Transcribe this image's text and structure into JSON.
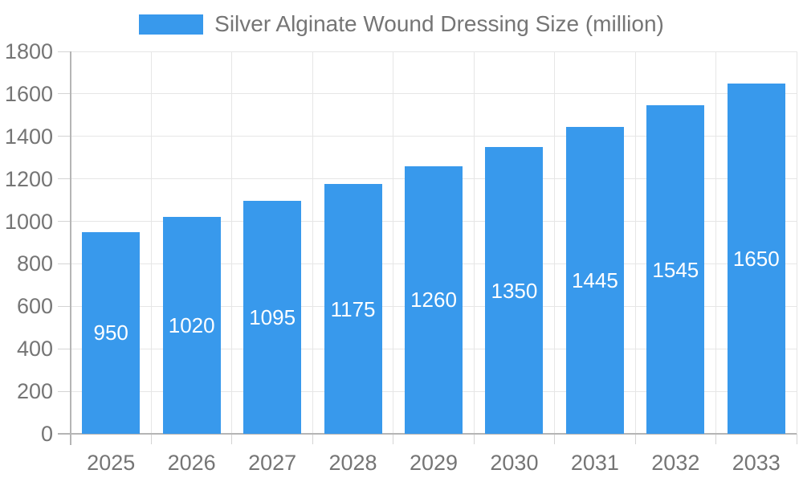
{
  "chart_data": {
    "type": "bar",
    "title": "Silver Alginate Wound Dressing Size (million)",
    "legend": {
      "label": "Silver Alginate Wound Dressing Size (million)",
      "position": "top"
    },
    "categories": [
      "2025",
      "2026",
      "2027",
      "2028",
      "2029",
      "2030",
      "2031",
      "2032",
      "2033"
    ],
    "series": [
      {
        "name": "Silver Alginate Wound Dressing Size (million)",
        "values": [
          950,
          1020,
          1095,
          1175,
          1260,
          1350,
          1445,
          1545,
          1650
        ]
      }
    ],
    "xlabel": "",
    "ylabel": "",
    "ylim": [
      0,
      1800
    ],
    "ytick_step": 200,
    "yticks": [
      0,
      200,
      400,
      600,
      800,
      1000,
      1200,
      1400,
      1600,
      1800
    ],
    "grid": true,
    "value_labels_position": "inside-center",
    "colors": {
      "bar": "#3899ec",
      "bar_label": "#ffffff",
      "axis_text": "#757575",
      "grid": "#e6e6e6",
      "tick": "#d4d4d4",
      "axis_line": "#b5b5b5",
      "background": "#ffffff"
    }
  }
}
